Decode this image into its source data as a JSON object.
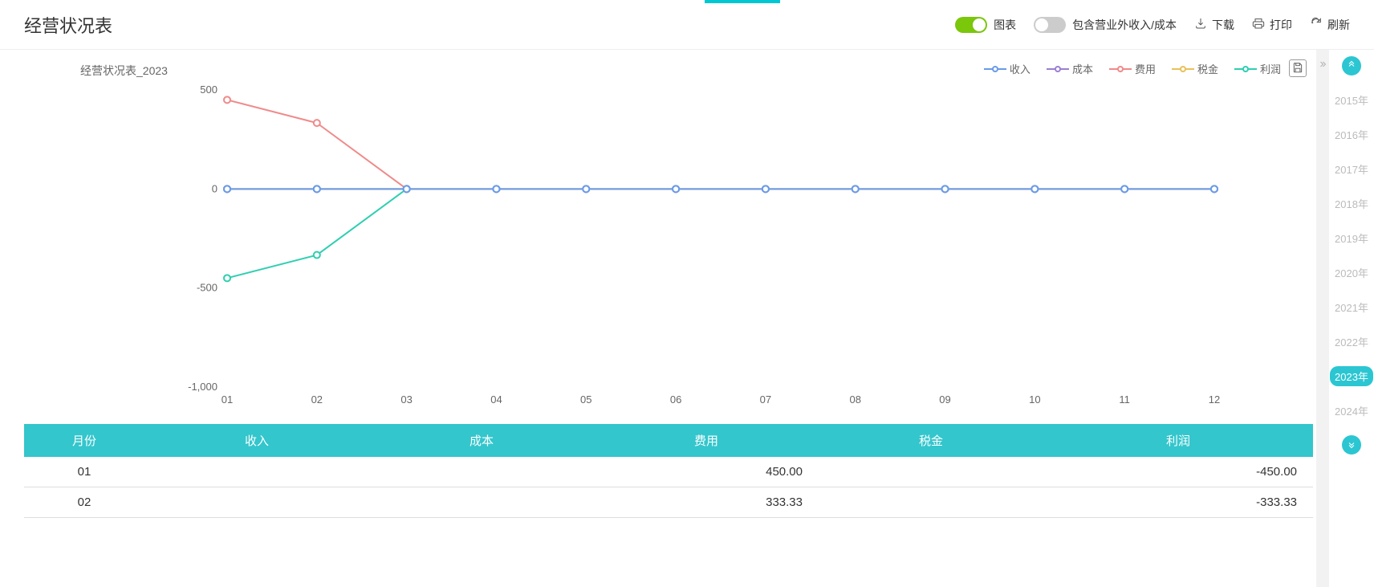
{
  "title": "经营状况表",
  "toolbar": {
    "toggle_chart_label": "图表",
    "toggle_chart_on": true,
    "toggle_nonoper_label": "包含营业外收入/成本",
    "toggle_nonoper_on": false,
    "download_label": "下载",
    "print_label": "打印",
    "refresh_label": "刷新"
  },
  "chart": {
    "type": "line",
    "title": "经营状况表_2023",
    "x_categories": [
      "01",
      "02",
      "03",
      "04",
      "05",
      "06",
      "07",
      "08",
      "09",
      "10",
      "11",
      "12"
    ],
    "yticks": [
      {
        "v": 500,
        "label": "500"
      },
      {
        "v": 0,
        "label": "0"
      },
      {
        "v": -500,
        "label": "-500"
      },
      {
        "v": -1000,
        "label": "-1,000"
      }
    ],
    "ylim": [
      -1000,
      500
    ],
    "series": [
      {
        "key": "income",
        "label": "收入",
        "color": "#6a9be8",
        "values": [
          0,
          0,
          0,
          0,
          0,
          0,
          0,
          0,
          0,
          0,
          0,
          0
        ]
      },
      {
        "key": "cost",
        "label": "成本",
        "color": "#9b7fd4",
        "values": [
          0,
          0,
          0,
          0,
          0,
          0,
          0,
          0,
          0,
          0,
          0,
          0
        ]
      },
      {
        "key": "fee",
        "label": "费用",
        "color": "#f08a8a",
        "values": [
          450,
          333.33,
          0,
          0,
          0,
          0,
          0,
          0,
          0,
          0,
          0,
          0
        ]
      },
      {
        "key": "tax",
        "label": "税金",
        "color": "#e8c15a",
        "values": [
          0,
          0,
          0,
          0,
          0,
          0,
          0,
          0,
          0,
          0,
          0,
          0
        ]
      },
      {
        "key": "profit",
        "label": "利润",
        "color": "#2ecfb0",
        "values": [
          -450,
          -333.33,
          0,
          0,
          0,
          0,
          0,
          0,
          0,
          0,
          0,
          0
        ]
      }
    ],
    "label_fontsize": 13,
    "background_color": "#ffffff",
    "grid_color": "#e8e8e8"
  },
  "legend": {
    "income": "收入",
    "cost": "成本",
    "fee": "费用",
    "tax": "税金",
    "profit": "利润"
  },
  "table": {
    "columns": [
      {
        "key": "month",
        "label": "月份",
        "align": "center"
      },
      {
        "key": "income",
        "label": "收入",
        "align": "right"
      },
      {
        "key": "cost",
        "label": "成本",
        "align": "right"
      },
      {
        "key": "fee",
        "label": "费用",
        "align": "right"
      },
      {
        "key": "tax",
        "label": "税金",
        "align": "right"
      },
      {
        "key": "profit",
        "label": "利润",
        "align": "right"
      }
    ],
    "rows": [
      {
        "month": "01",
        "income": "",
        "cost": "",
        "fee": "450.00",
        "tax": "",
        "profit": "-450.00"
      },
      {
        "month": "02",
        "income": "",
        "cost": "",
        "fee": "333.33",
        "tax": "",
        "profit": "-333.33"
      }
    ],
    "header_bg": "#33c6cc",
    "header_color": "#ffffff"
  },
  "years": {
    "items": [
      "2015年",
      "2016年",
      "2017年",
      "2018年",
      "2019年",
      "2020年",
      "2021年",
      "2022年",
      "2023年",
      "2024年"
    ],
    "active_index": 8
  }
}
